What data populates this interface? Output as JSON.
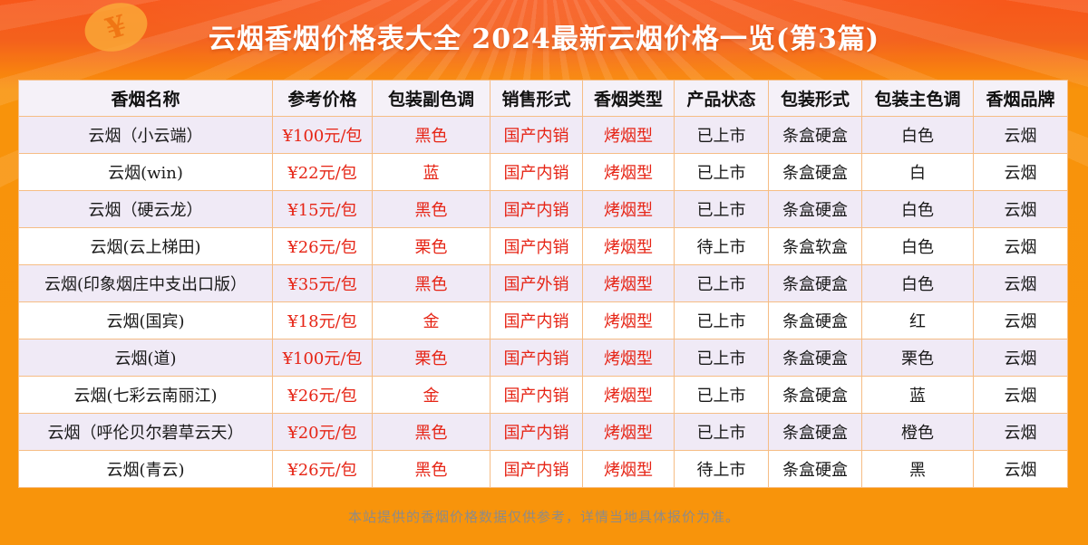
{
  "page": {
    "title": "云烟香烟价格表大全 2024最新云烟价格一览(第3篇)",
    "footer": "本站提供的香烟价格数据仅供参考，详情当地具体报价为准。",
    "coin_symbol": "¥"
  },
  "colors": {
    "background_orange": "#f8940b",
    "background_red_orange": "#f7571a",
    "row_alt_lavender": "#f0eaf6",
    "cell_border": "#f6bd85",
    "highlight_red": "#e62415",
    "coin_gold": "#fbaa38"
  },
  "table": {
    "columns": [
      "香烟名称",
      "参考价格",
      "包装副色调",
      "销售形式",
      "香烟类型",
      "产品状态",
      "包装形式",
      "包装主色调",
      "香烟品牌"
    ],
    "rows": [
      {
        "name": "云烟（小云端）",
        "price": "¥100元/包",
        "sub_color": "黑色",
        "sale_form": "国产内销",
        "type": "烤烟型",
        "status": "已上市",
        "pack_form": "条盒硬盒",
        "main_color": "白色",
        "brand": "云烟"
      },
      {
        "name": "云烟(win)",
        "price": "¥22元/包",
        "sub_color": "蓝",
        "sale_form": "国产内销",
        "type": "烤烟型",
        "status": "已上市",
        "pack_form": "条盒硬盒",
        "main_color": "白",
        "brand": "云烟"
      },
      {
        "name": "云烟（硬云龙）",
        "price": "¥15元/包",
        "sub_color": "黑色",
        "sale_form": "国产内销",
        "type": "烤烟型",
        "status": "已上市",
        "pack_form": "条盒硬盒",
        "main_color": "白色",
        "brand": "云烟"
      },
      {
        "name": "云烟(云上梯田)",
        "price": "¥26元/包",
        "sub_color": "栗色",
        "sale_form": "国产内销",
        "type": "烤烟型",
        "status": "待上市",
        "pack_form": "条盒软盒",
        "main_color": "白色",
        "brand": "云烟"
      },
      {
        "name": "云烟(印象烟庄中支出口版）",
        "price": "¥35元/包",
        "sub_color": "黑色",
        "sale_form": "国产外销",
        "type": "烤烟型",
        "status": "已上市",
        "pack_form": "条盒硬盒",
        "main_color": "白色",
        "brand": "云烟"
      },
      {
        "name": "云烟(国宾)",
        "price": "¥18元/包",
        "sub_color": "金",
        "sale_form": "国产内销",
        "type": "烤烟型",
        "status": "已上市",
        "pack_form": "条盒硬盒",
        "main_color": "红",
        "brand": "云烟"
      },
      {
        "name": "云烟(道)",
        "price": "¥100元/包",
        "sub_color": "栗色",
        "sale_form": "国产内销",
        "type": "烤烟型",
        "status": "已上市",
        "pack_form": "条盒硬盒",
        "main_color": "栗色",
        "brand": "云烟"
      },
      {
        "name": "云烟(七彩云南丽江)",
        "price": "¥26元/包",
        "sub_color": "金",
        "sale_form": "国产内销",
        "type": "烤烟型",
        "status": "已上市",
        "pack_form": "条盒硬盒",
        "main_color": "蓝",
        "brand": "云烟"
      },
      {
        "name": "云烟（呼伦贝尔碧草云天）",
        "price": "¥20元/包",
        "sub_color": "黑色",
        "sale_form": "国产内销",
        "type": "烤烟型",
        "status": "已上市",
        "pack_form": "条盒硬盒",
        "main_color": "橙色",
        "brand": "云烟"
      },
      {
        "name": "云烟(青云)",
        "price": "¥26元/包",
        "sub_color": "黑色",
        "sale_form": "国产内销",
        "type": "烤烟型",
        "status": "待上市",
        "pack_form": "条盒硬盒",
        "main_color": "黑",
        "brand": "云烟"
      }
    ]
  }
}
